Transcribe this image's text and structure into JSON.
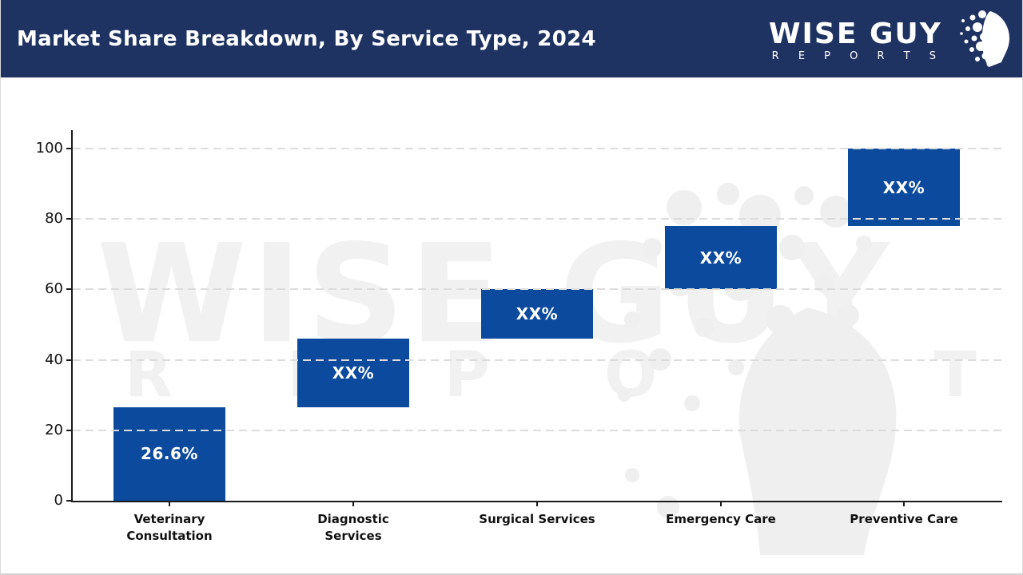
{
  "header": {
    "title": "Market Share Breakdown, By Service Type, 2024",
    "logo": {
      "line1": "WISE GUY",
      "line2": "R E P O R T S"
    }
  },
  "watermark": {
    "line1": "WISE GUY",
    "line2": "R E P O R T S"
  },
  "chart_data": {
    "type": "bar",
    "subtype": "waterfall",
    "title": "Market Share Breakdown, By Service Type, 2024",
    "categories": [
      [
        "Veterinary",
        "Consultation"
      ],
      [
        "Diagnostic",
        "Services"
      ],
      [
        "Surgical Services"
      ],
      [
        "Emergency Care"
      ],
      [
        "Preventive Care"
      ]
    ],
    "segments": [
      {
        "category": "Veterinary Consultation",
        "start": 0,
        "end": 26.6,
        "label": "26.6%"
      },
      {
        "category": "Diagnostic Services",
        "start": 26.6,
        "end": 46,
        "label": "XX%"
      },
      {
        "category": "Surgical Services",
        "start": 46,
        "end": 60,
        "label": "XX%"
      },
      {
        "category": "Emergency Care",
        "start": 60,
        "end": 78,
        "label": "XX%"
      },
      {
        "category": "Preventive Care",
        "start": 78,
        "end": 100,
        "label": "XX%"
      }
    ],
    "ylim": [
      0,
      100
    ],
    "yticks": [
      0,
      20,
      40,
      60,
      80,
      100
    ],
    "grid": "horizontal-dashed",
    "legend": "none",
    "bar_color": "#0c4a9e",
    "bar_label_color": "#ffffff"
  },
  "colors": {
    "header_bg": "#1f3363",
    "bar": "#0c4a9e",
    "grid": "#dcdcdc",
    "axis": "#1a1a1a",
    "watermark": "#f1f1f1"
  }
}
